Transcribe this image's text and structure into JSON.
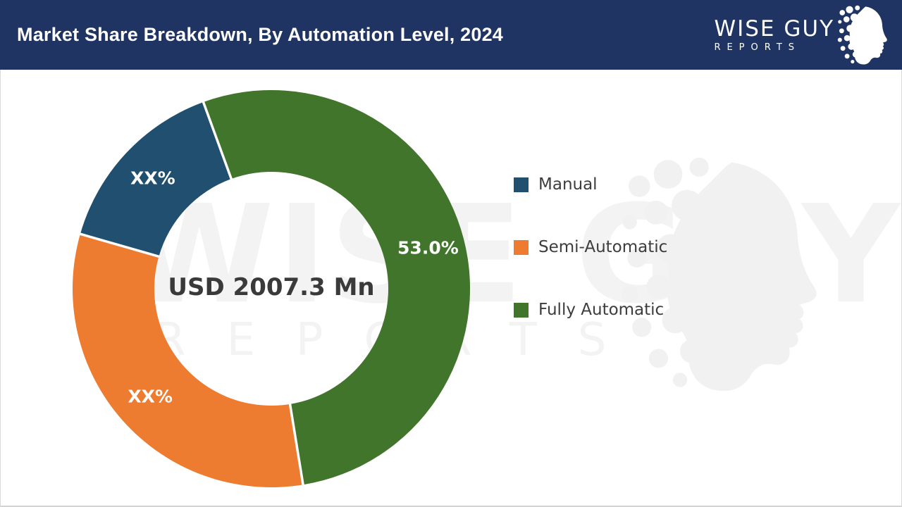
{
  "header": {
    "title": "Market Share Breakdown, By Automation Level, 2024",
    "bg_color": "#1f3462",
    "logo": {
      "line1": "WISE GUY",
      "line2": "REPORTS"
    }
  },
  "watermark": {
    "line1": "WISE GUY",
    "line2": "REPORTS"
  },
  "chart_data": {
    "type": "pie",
    "subtype": "donut",
    "title": "Market Share Breakdown, By Automation Level, 2024",
    "center_label": "USD 2007.3 Mn",
    "units": "percent of market share",
    "start_angle_deg": -20,
    "clockwise": true,
    "donut_hole_ratio": 0.59,
    "label_radius_ratio": 0.815,
    "legend_position": "right",
    "slices": [
      {
        "label": "Manual",
        "display_value": "XX%",
        "value_pct_est": 15,
        "color": "#204F70"
      },
      {
        "label": "Semi-Automatic",
        "display_value": "XX%",
        "value_pct_est": 32,
        "color": "#ED7C31"
      },
      {
        "label": "Fully Automatic",
        "display_value": "53.0%",
        "value_pct_est": 53,
        "color": "#41752B"
      }
    ],
    "slice_border_color": "#ffffff",
    "watermark_color": "#f3f3f3"
  }
}
